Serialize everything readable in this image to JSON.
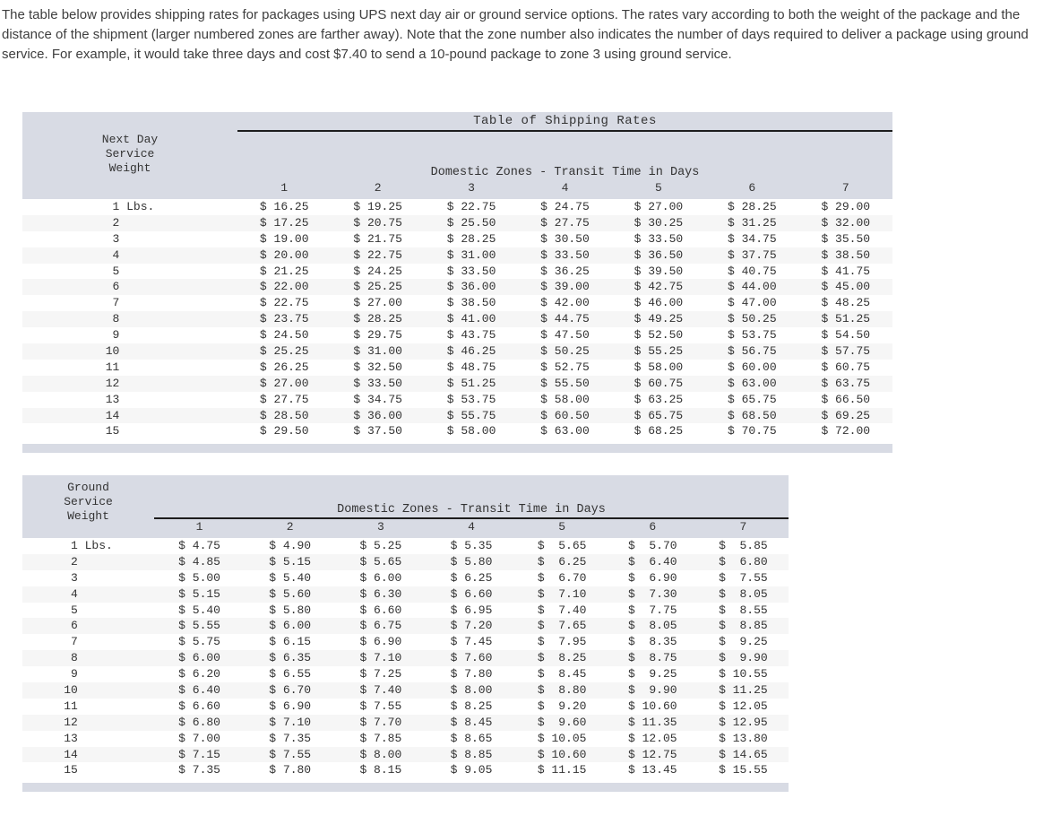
{
  "intro": "The table below provides shipping rates for packages using UPS next day air or ground service options. The rates vary according to both the weight of the package and the distance of the shipment (larger numbered zones are farther away). Note that the zone number also indicates the number of days required to deliver a package using ground service. For example, it would take three days and cost $7.40 to send a 10-pound package to zone 3 using ground service.",
  "colors": {
    "header_bg": "#d8dbe4",
    "stripe_bg": "#f6f6f6",
    "rule": "#1d1d1d",
    "text": "#333333"
  },
  "currency_symbol": "$",
  "next_day_table": {
    "title": "Table of Shipping Rates",
    "weight_header_lines": [
      "Next Day",
      "Service",
      "Weight"
    ],
    "zones_header": "Domestic Zones - Transit Time in Days",
    "zone_columns": [
      "1",
      "2",
      "3",
      "4",
      "5",
      "6",
      "7"
    ],
    "rows": [
      {
        "weight": "1",
        "suffix": " Lbs.",
        "rates": [
          "16.25",
          "19.25",
          "22.75",
          "24.75",
          "27.00",
          "28.25",
          "29.00"
        ]
      },
      {
        "weight": "2",
        "suffix": "",
        "rates": [
          "17.25",
          "20.75",
          "25.50",
          "27.75",
          "30.25",
          "31.25",
          "32.00"
        ]
      },
      {
        "weight": "3",
        "suffix": "",
        "rates": [
          "19.00",
          "21.75",
          "28.25",
          "30.50",
          "33.50",
          "34.75",
          "35.50"
        ]
      },
      {
        "weight": "4",
        "suffix": "",
        "rates": [
          "20.00",
          "22.75",
          "31.00",
          "33.50",
          "36.50",
          "37.75",
          "38.50"
        ]
      },
      {
        "weight": "5",
        "suffix": "",
        "rates": [
          "21.25",
          "24.25",
          "33.50",
          "36.25",
          "39.50",
          "40.75",
          "41.75"
        ]
      },
      {
        "weight": "6",
        "suffix": "",
        "rates": [
          "22.00",
          "25.25",
          "36.00",
          "39.00",
          "42.75",
          "44.00",
          "45.00"
        ]
      },
      {
        "weight": "7",
        "suffix": "",
        "rates": [
          "22.75",
          "27.00",
          "38.50",
          "42.00",
          "46.00",
          "47.00",
          "48.25"
        ]
      },
      {
        "weight": "8",
        "suffix": "",
        "rates": [
          "23.75",
          "28.25",
          "41.00",
          "44.75",
          "49.25",
          "50.25",
          "51.25"
        ]
      },
      {
        "weight": "9",
        "suffix": "",
        "rates": [
          "24.50",
          "29.75",
          "43.75",
          "47.50",
          "52.50",
          "53.75",
          "54.50"
        ]
      },
      {
        "weight": "10",
        "suffix": "",
        "rates": [
          "25.25",
          "31.00",
          "46.25",
          "50.25",
          "55.25",
          "56.75",
          "57.75"
        ]
      },
      {
        "weight": "11",
        "suffix": "",
        "rates": [
          "26.25",
          "32.50",
          "48.75",
          "52.75",
          "58.00",
          "60.00",
          "60.75"
        ]
      },
      {
        "weight": "12",
        "suffix": "",
        "rates": [
          "27.00",
          "33.50",
          "51.25",
          "55.50",
          "60.75",
          "63.00",
          "63.75"
        ]
      },
      {
        "weight": "13",
        "suffix": "",
        "rates": [
          "27.75",
          "34.75",
          "53.75",
          "58.00",
          "63.25",
          "65.75",
          "66.50"
        ]
      },
      {
        "weight": "14",
        "suffix": "",
        "rates": [
          "28.50",
          "36.00",
          "55.75",
          "60.50",
          "65.75",
          "68.50",
          "69.25"
        ]
      },
      {
        "weight": "15",
        "suffix": "",
        "rates": [
          "29.50",
          "37.50",
          "58.00",
          "63.00",
          "68.25",
          "70.75",
          "72.00"
        ]
      }
    ]
  },
  "ground_table": {
    "weight_header_lines": [
      "Ground",
      "Service",
      "Weight"
    ],
    "zones_header": "Domestic Zones - Transit Time in Days",
    "zone_columns": [
      "1",
      "2",
      "3",
      "4",
      "5",
      "6",
      "7"
    ],
    "rows": [
      {
        "weight": "1",
        "suffix": " Lbs.",
        "rates": [
          "4.75",
          "4.90",
          "5.25",
          "5.35",
          "5.65",
          "5.70",
          "5.85"
        ]
      },
      {
        "weight": "2",
        "suffix": "",
        "rates": [
          "4.85",
          "5.15",
          "5.65",
          "5.80",
          "6.25",
          "6.40",
          "6.80"
        ]
      },
      {
        "weight": "3",
        "suffix": "",
        "rates": [
          "5.00",
          "5.40",
          "6.00",
          "6.25",
          "6.70",
          "6.90",
          "7.55"
        ]
      },
      {
        "weight": "4",
        "suffix": "",
        "rates": [
          "5.15",
          "5.60",
          "6.30",
          "6.60",
          "7.10",
          "7.30",
          "8.05"
        ]
      },
      {
        "weight": "5",
        "suffix": "",
        "rates": [
          "5.40",
          "5.80",
          "6.60",
          "6.95",
          "7.40",
          "7.75",
          "8.55"
        ]
      },
      {
        "weight": "6",
        "suffix": "",
        "rates": [
          "5.55",
          "6.00",
          "6.75",
          "7.20",
          "7.65",
          "8.05",
          "8.85"
        ]
      },
      {
        "weight": "7",
        "suffix": "",
        "rates": [
          "5.75",
          "6.15",
          "6.90",
          "7.45",
          "7.95",
          "8.35",
          "9.25"
        ]
      },
      {
        "weight": "8",
        "suffix": "",
        "rates": [
          "6.00",
          "6.35",
          "7.10",
          "7.60",
          "8.25",
          "8.75",
          "9.90"
        ]
      },
      {
        "weight": "9",
        "suffix": "",
        "rates": [
          "6.20",
          "6.55",
          "7.25",
          "7.80",
          "8.45",
          "9.25",
          "10.55"
        ]
      },
      {
        "weight": "10",
        "suffix": "",
        "rates": [
          "6.40",
          "6.70",
          "7.40",
          "8.00",
          "8.80",
          "9.90",
          "11.25"
        ]
      },
      {
        "weight": "11",
        "suffix": "",
        "rates": [
          "6.60",
          "6.90",
          "7.55",
          "8.25",
          "9.20",
          "10.60",
          "12.05"
        ]
      },
      {
        "weight": "12",
        "suffix": "",
        "rates": [
          "6.80",
          "7.10",
          "7.70",
          "8.45",
          "9.60",
          "11.35",
          "12.95"
        ]
      },
      {
        "weight": "13",
        "suffix": "",
        "rates": [
          "7.00",
          "7.35",
          "7.85",
          "8.65",
          "10.05",
          "12.05",
          "13.80"
        ]
      },
      {
        "weight": "14",
        "suffix": "",
        "rates": [
          "7.15",
          "7.55",
          "8.00",
          "8.85",
          "10.60",
          "12.75",
          "14.65"
        ]
      },
      {
        "weight": "15",
        "suffix": "",
        "rates": [
          "7.35",
          "7.80",
          "8.15",
          "9.05",
          "11.15",
          "13.45",
          "15.55"
        ]
      }
    ]
  }
}
